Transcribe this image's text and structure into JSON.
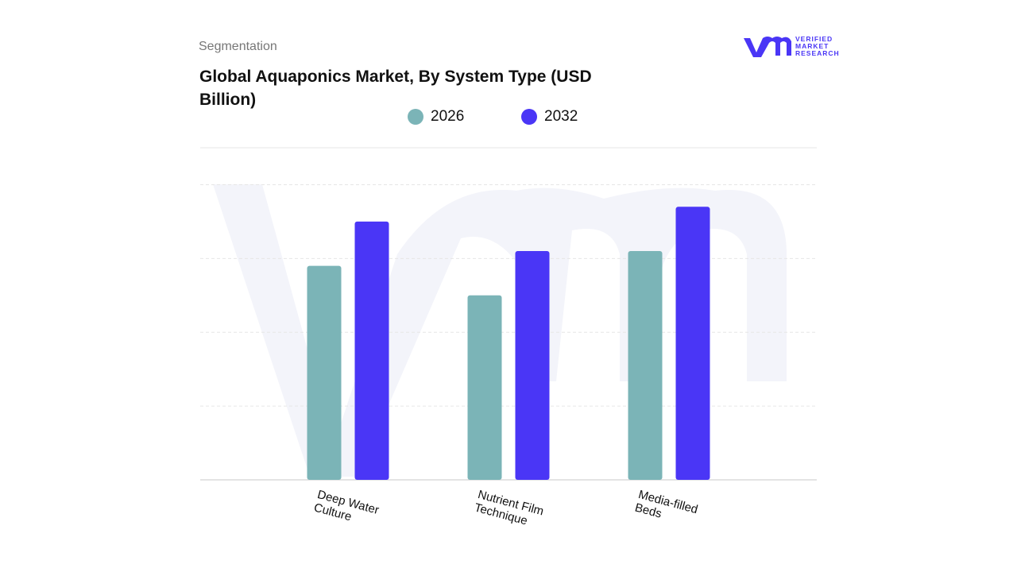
{
  "header": {
    "section": "Segmentation"
  },
  "logo": {
    "lines": [
      "VERIFIED",
      "MARKET",
      "RESEARCH"
    ]
  },
  "chart_data": {
    "type": "bar",
    "title": "Global Aquaponics Market, By System Type (USD Billion)",
    "categories": [
      "Deep Water Culture",
      "Nutrient Film Technique",
      "Media-filled Beds"
    ],
    "series": [
      {
        "name": "2026",
        "color": "#7bb4b7",
        "values": [
          2.9,
          2.5,
          3.1
        ]
      },
      {
        "name": "2032",
        "color": "#4a36f6",
        "values": [
          3.5,
          3.1,
          3.7
        ]
      }
    ],
    "ylim": [
      0,
      4.5
    ],
    "yticks": [
      1,
      2,
      3,
      4
    ],
    "grid": true
  }
}
